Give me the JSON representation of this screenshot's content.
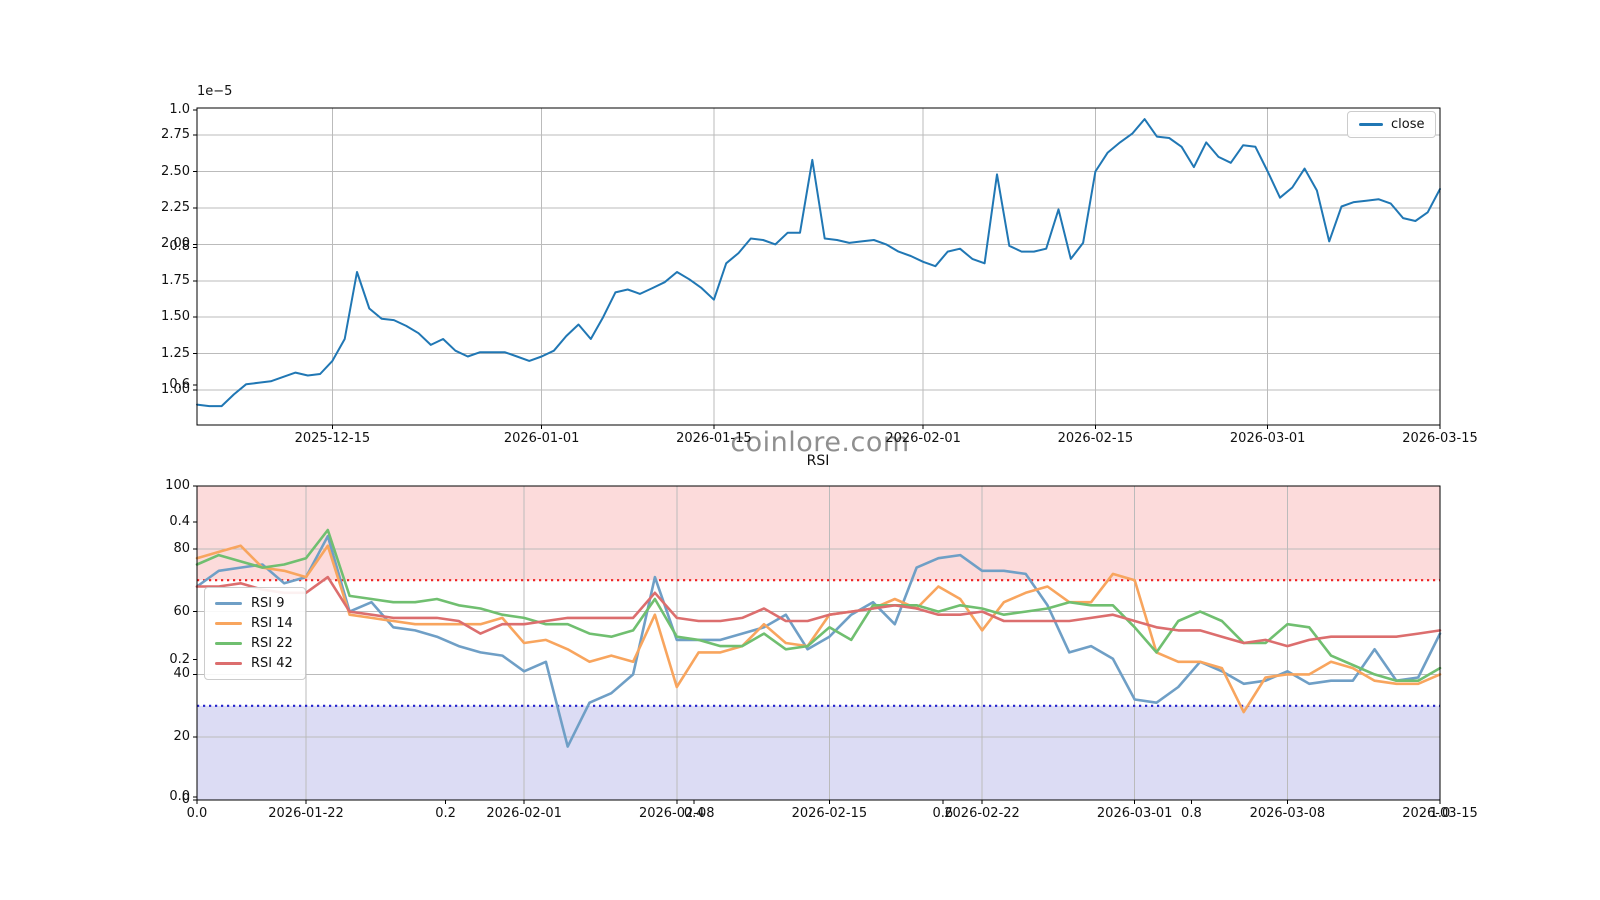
{
  "watermark": "coinlore.com",
  "overlay_axis": {
    "x_tick_labels": [
      "0.0",
      "0.2",
      "0.4",
      "0.6",
      "0.8",
      "1.0"
    ],
    "y_tick_labels": [
      "0.0",
      "0.2",
      "0.4",
      "0.6",
      "0.8",
      "1.0"
    ]
  },
  "chart_data": [
    {
      "name": "close-price",
      "type": "line",
      "title": "",
      "y_offset_label": "1e−5",
      "value_scale": "1e-5",
      "x_start_date": "2025-12-04",
      "x_interval": "daily",
      "x_tick_labels": [
        "2025-12-15",
        "2026-01-01",
        "2026-01-15",
        "2026-02-01",
        "2026-02-15",
        "2026-03-01",
        "2026-03-15"
      ],
      "x_tick_day_index": [
        11,
        28,
        42,
        59,
        73,
        87,
        101
      ],
      "y_tick_labels": [
        "1.00",
        "1.25",
        "1.50",
        "1.75",
        "2.00",
        "2.25",
        "2.50",
        "2.75"
      ],
      "y_ticks": [
        1.0,
        1.25,
        1.5,
        1.75,
        2.0,
        2.25,
        2.5,
        2.75
      ],
      "ylim": [
        0.76,
        2.936
      ],
      "grid": true,
      "legend_position": "upper right",
      "series": [
        {
          "name": "close",
          "color": "#2077b4",
          "values": [
            0.9,
            0.89,
            0.89,
            0.97,
            1.04,
            1.05,
            1.06,
            1.09,
            1.12,
            1.1,
            1.11,
            1.2,
            1.35,
            1.81,
            1.56,
            1.49,
            1.48,
            1.44,
            1.39,
            1.31,
            1.35,
            1.27,
            1.23,
            1.26,
            1.26,
            1.26,
            1.23,
            1.2,
            1.23,
            1.27,
            1.37,
            1.45,
            1.35,
            1.5,
            1.67,
            1.69,
            1.66,
            1.7,
            1.74,
            1.81,
            1.76,
            1.7,
            1.62,
            1.87,
            1.94,
            2.04,
            2.03,
            2.0,
            2.08,
            2.08,
            2.58,
            2.04,
            2.03,
            2.01,
            2.02,
            2.03,
            2.0,
            1.95,
            1.92,
            1.88,
            1.85,
            1.95,
            1.97,
            1.9,
            1.87,
            2.48,
            1.99,
            1.95,
            1.95,
            1.97,
            2.24,
            1.9,
            2.01,
            2.5,
            2.63,
            2.7,
            2.76,
            2.86,
            2.74,
            2.73,
            2.67,
            2.53,
            2.7,
            2.6,
            2.56,
            2.68,
            2.67,
            2.5,
            2.32,
            2.39,
            2.52,
            2.37,
            2.02,
            2.26,
            2.29,
            2.3,
            2.31,
            2.28,
            2.18,
            2.16,
            2.22,
            2.38
          ]
        }
      ]
    },
    {
      "name": "rsi",
      "type": "line",
      "title": "RSI",
      "x_start_date": "2026-01-17",
      "x_interval": "daily",
      "x_tick_labels": [
        "2026-01-22",
        "2026-02-01",
        "2026-02-08",
        "2026-02-15",
        "2026-02-22",
        "2026-03-01",
        "2026-03-08",
        "2026-03-15"
      ],
      "x_tick_day_index": [
        5,
        15,
        22,
        29,
        36,
        43,
        50,
        57
      ],
      "y_tick_labels": [
        "0",
        "20",
        "40",
        "60",
        "80",
        "100"
      ],
      "y_ticks": [
        0,
        20,
        40,
        60,
        80,
        100
      ],
      "ylim": [
        0,
        100
      ],
      "grid": true,
      "overbought_level": 70,
      "oversold_level": 30,
      "bands": [
        {
          "from": 70,
          "to": 100,
          "color": "#fcdbdb"
        },
        {
          "from": 0,
          "to": 30,
          "color": "#dcdcf4"
        }
      ],
      "threshold_lines": [
        {
          "value": 70,
          "color": "#ee2222",
          "style": "dotted"
        },
        {
          "value": 30,
          "color": "#2222cc",
          "style": "dotted"
        }
      ],
      "legend_position": "center left",
      "series": [
        {
          "name": "RSI 9",
          "color": "#6f9fc6",
          "values": [
            68,
            73,
            74,
            75,
            69,
            71,
            84,
            60,
            63,
            55,
            54,
            52,
            49,
            47,
            46,
            41,
            44,
            17,
            31,
            34,
            40,
            71,
            51,
            51,
            51,
            53,
            55,
            59,
            48,
            52,
            59,
            63,
            56,
            74,
            77,
            78,
            73,
            73,
            72,
            62,
            47,
            49,
            45,
            32,
            31,
            36,
            44,
            41,
            37,
            38,
            41,
            37,
            38,
            38,
            48,
            38,
            39,
            53
          ]
        },
        {
          "name": "RSI 14",
          "color": "#f8a55e",
          "values": [
            77,
            79,
            81,
            74,
            73,
            71,
            81,
            59,
            58,
            57,
            56,
            56,
            56,
            56,
            58,
            50,
            51,
            48,
            44,
            46,
            44,
            59,
            36,
            47,
            47,
            49,
            56,
            50,
            49,
            59,
            60,
            61,
            64,
            61,
            68,
            64,
            54,
            63,
            66,
            68,
            63,
            63,
            72,
            70,
            47,
            44,
            44,
            42,
            28,
            39,
            40,
            40,
            44,
            42,
            38,
            37,
            37,
            40
          ]
        },
        {
          "name": "RSI 22",
          "color": "#70bf70",
          "values": [
            75,
            78,
            76,
            74,
            75,
            77,
            86,
            65,
            64,
            63,
            63,
            64,
            62,
            61,
            59,
            58,
            56,
            56,
            53,
            52,
            54,
            64,
            52,
            51,
            49,
            49,
            53,
            48,
            49,
            55,
            51,
            62,
            62,
            62,
            60,
            62,
            61,
            59,
            60,
            61,
            63,
            62,
            62,
            55,
            47,
            57,
            60,
            57,
            50,
            50,
            56,
            55,
            46,
            43,
            40,
            38,
            38,
            42
          ]
        },
        {
          "name": "RSI 42",
          "color": "#dc6e6e",
          "values": [
            68,
            68,
            69,
            67,
            66,
            66,
            71,
            60,
            59,
            58,
            58,
            58,
            57,
            53,
            56,
            56,
            57,
            58,
            58,
            58,
            58,
            66,
            58,
            57,
            57,
            58,
            61,
            57,
            57,
            59,
            60,
            61,
            62,
            61,
            59,
            59,
            60,
            57,
            57,
            57,
            57,
            58,
            59,
            57,
            55,
            54,
            54,
            52,
            50,
            51,
            49,
            51,
            52,
            52,
            52,
            52,
            53,
            54
          ]
        }
      ]
    }
  ]
}
